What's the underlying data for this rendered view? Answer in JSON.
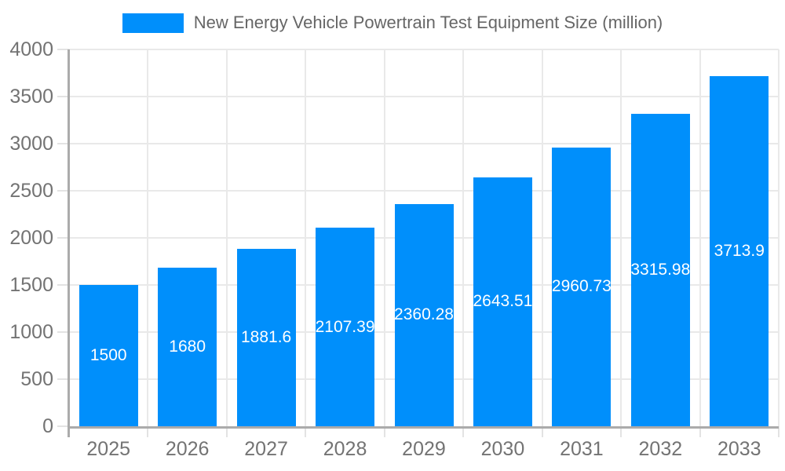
{
  "legend": {
    "label": "New Energy Vehicle Powertrain Test Equipment Size (million)",
    "swatch_color": "#008FFB"
  },
  "chart_data": {
    "type": "bar",
    "title": "New Energy Vehicle Powertrain Test Equipment Size (million)",
    "categories": [
      "2025",
      "2026",
      "2027",
      "2028",
      "2029",
      "2030",
      "2031",
      "2032",
      "2033"
    ],
    "values": [
      1500,
      1680,
      1881.6,
      2107.39,
      2360.28,
      2643.51,
      2960.73,
      3315.98,
      3713.9
    ],
    "data_labels": [
      "1500",
      "1680",
      "1881.6",
      "2107.39",
      "2360.28",
      "2643.51",
      "2960.73",
      "3315.98",
      "3713.9"
    ],
    "xlabel": "",
    "ylabel": "",
    "ylim": [
      0,
      4000
    ],
    "ytick_step": 500,
    "ytick_labels": [
      "0",
      "500",
      "1000",
      "1500",
      "2000",
      "2500",
      "3000",
      "3500",
      "4000"
    ],
    "grid": true,
    "legend_position": "top",
    "bar_color": "#008FFB",
    "data_label_color": "#ffffff",
    "grid_color": "#e9e9e9",
    "axis_line_color": "#ababab",
    "tick_color": "#e3e3e3",
    "axis_label_color": "#737373"
  }
}
